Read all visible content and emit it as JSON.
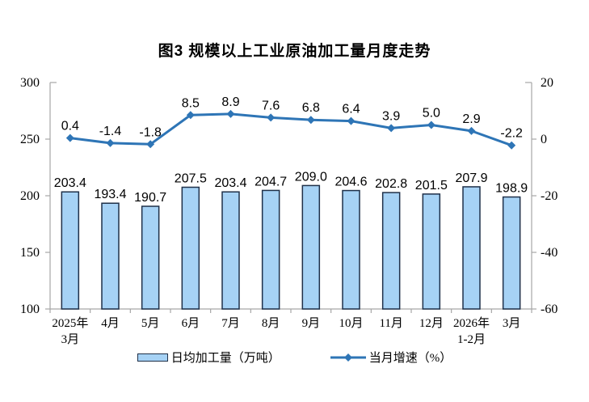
{
  "title": "图3 规模以上工业原油加工量月度走势",
  "chart_data": {
    "type": "bar+line",
    "categories": [
      [
        "2025年",
        "3月"
      ],
      [
        "4月"
      ],
      [
        "5月"
      ],
      [
        "6月"
      ],
      [
        "7月"
      ],
      [
        "8月"
      ],
      [
        "9月"
      ],
      [
        "10月"
      ],
      [
        "11月"
      ],
      [
        "12月"
      ],
      [
        "2026年",
        "1-2月"
      ],
      [
        "3月"
      ]
    ],
    "series": [
      {
        "name": "日均加工量（万吨）",
        "type": "bar",
        "axis": "left",
        "values": [
          203.4,
          193.4,
          190.7,
          207.5,
          203.4,
          204.7,
          209.0,
          204.6,
          202.8,
          201.5,
          207.9,
          198.9
        ]
      },
      {
        "name": "当月增速（%）",
        "type": "line",
        "axis": "right",
        "values": [
          0.4,
          -1.4,
          -1.8,
          8.5,
          8.9,
          7.6,
          6.8,
          6.4,
          3.9,
          5.0,
          2.9,
          -2.2
        ]
      }
    ],
    "left_axis": {
      "min": 100,
      "max": 300,
      "ticks": [
        300,
        250,
        200,
        150,
        100
      ]
    },
    "right_axis": {
      "min": -60,
      "max": 20,
      "ticks": [
        20,
        0,
        -20,
        -40,
        -60
      ]
    },
    "grid": false,
    "legend_position": "bottom",
    "colors": {
      "bar_fill": "#A6D2F5",
      "bar_stroke": "#1F3049",
      "line": "#2E75B6",
      "axis": "#A6A6A6",
      "text": "#000000",
      "background": "#FFFFFF"
    }
  }
}
